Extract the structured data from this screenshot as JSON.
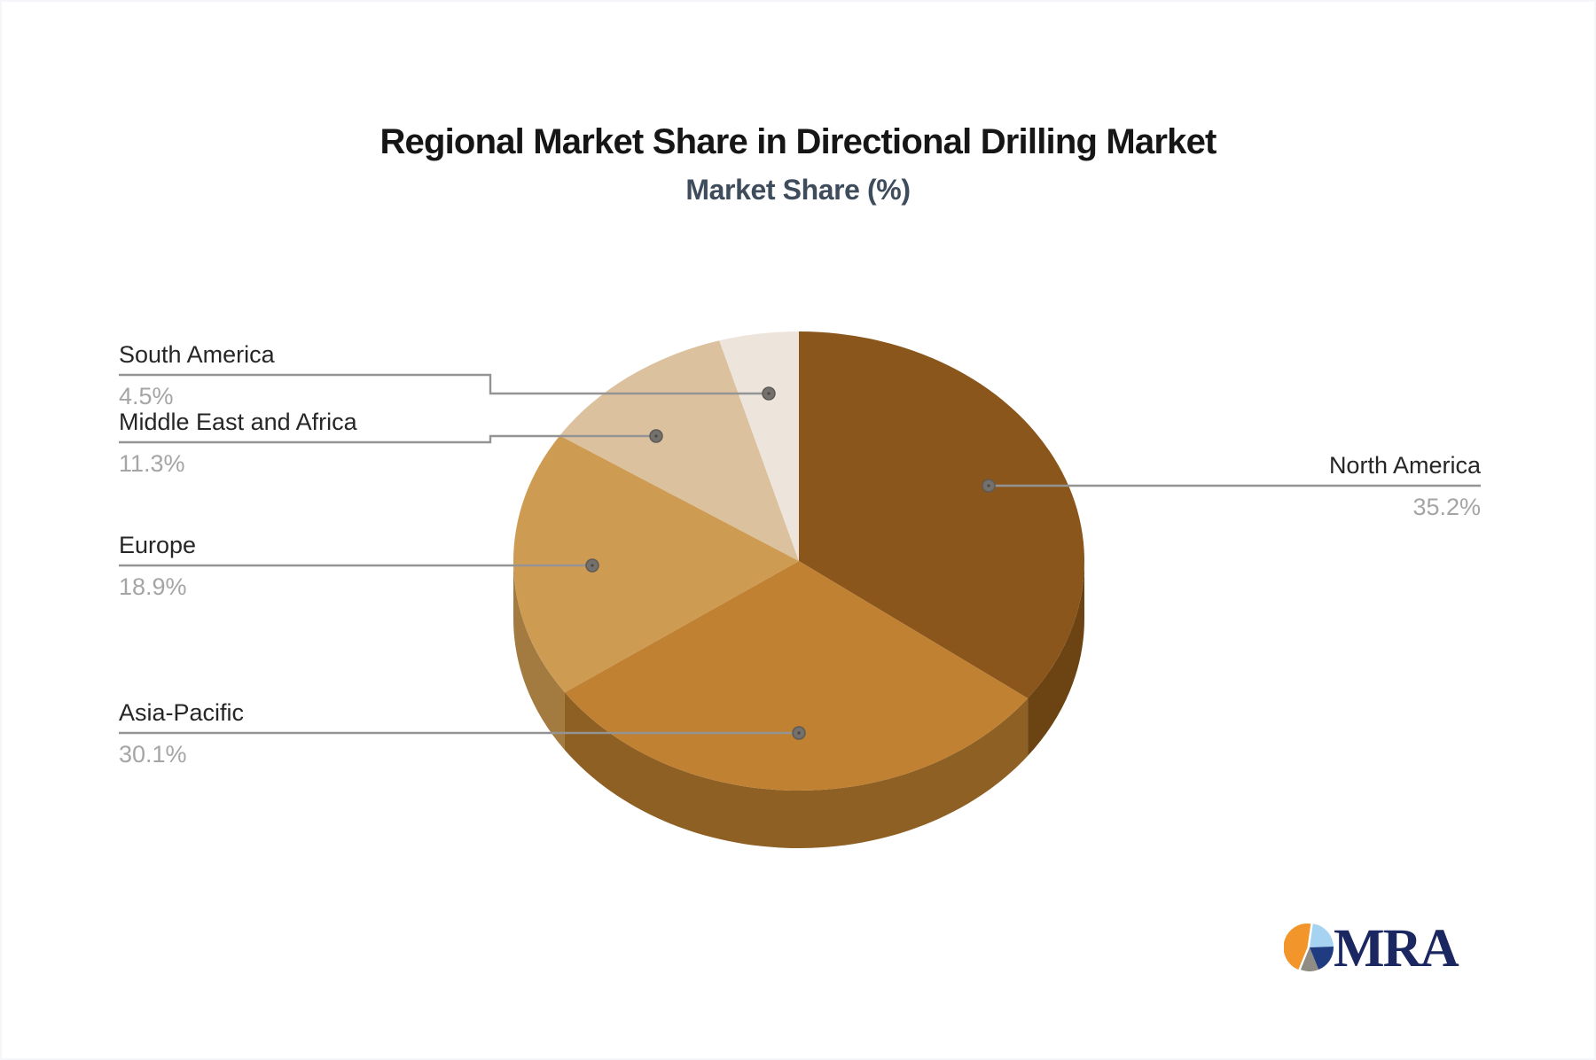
{
  "page": {
    "background": "#ffffff"
  },
  "header": {
    "title": "Regional Market Share in Directional Drilling Market",
    "subtitle": "Market Share (%)"
  },
  "chart_data": {
    "type": "pie",
    "title": "Regional Market Share in Directional Drilling Market",
    "subtitle": "Market Share (%)",
    "unit": "%",
    "effect_3d": true,
    "start_angle": "12-o-clock, clockwise",
    "legend_position": "callout-labels",
    "slices": [
      {
        "label": "North America",
        "value": 35.2,
        "value_label": "35.2%",
        "color": "#8A561B",
        "side_color": "#6C4413"
      },
      {
        "label": "Asia-Pacific",
        "value": 30.1,
        "value_label": "30.1%",
        "color": "#C08132",
        "side_color": "#8E6024"
      },
      {
        "label": "Europe",
        "value": 18.9,
        "value_label": "18.9%",
        "color": "#CE9B53",
        "side_color": "#A37B41"
      },
      {
        "label": "Middle East and Africa",
        "value": 11.3,
        "value_label": "11.3%",
        "color": "#DBC19E",
        "side_color": "#A99373"
      },
      {
        "label": "South America",
        "value": 4.5,
        "value_label": "4.5%",
        "color": "#EDE4DC",
        "side_color": "#B5A9A0"
      }
    ],
    "callout_style": {
      "line_color": "#949494",
      "dot_fill": "#74706C",
      "dot_ring": "#5E5A57",
      "name_color": "#262626",
      "pct_color": "#A5A5A5"
    }
  },
  "logo": {
    "text": "MRA",
    "text_color": "#1B2760",
    "pie_colors": {
      "orange": "#F2952A",
      "light_blue": "#A6D3F2",
      "navy": "#1F3C80",
      "gray": "#8E8C85"
    }
  }
}
